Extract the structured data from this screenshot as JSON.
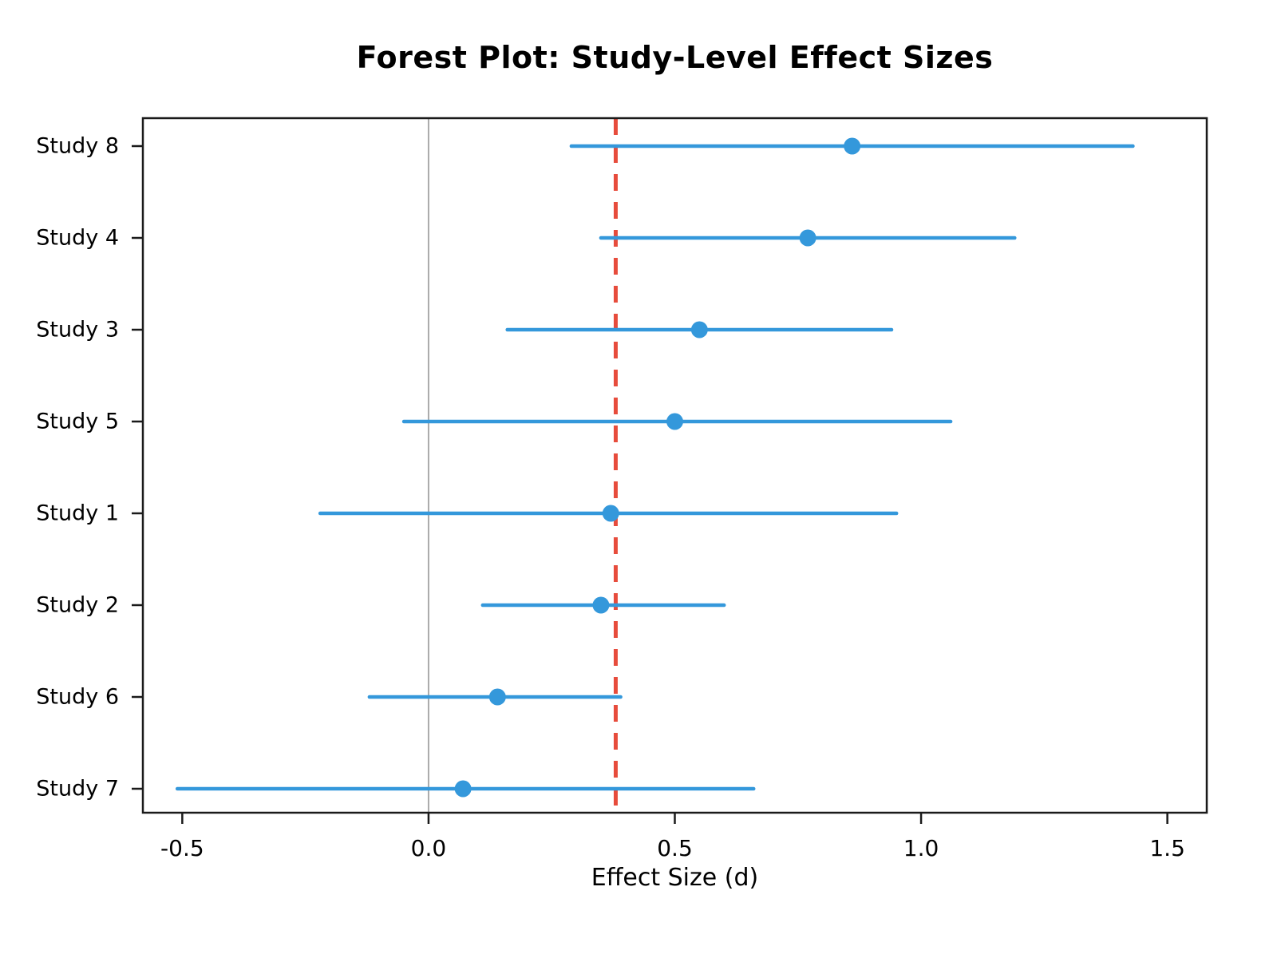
{
  "figure": {
    "background": "#ffffff"
  },
  "chart_data": {
    "type": "scatter",
    "variant": "forest-plot",
    "title": "Forest Plot: Study-Level Effect Sizes",
    "xlabel": "Effect Size (d)",
    "ylabel": "",
    "xlim": [
      -0.58,
      1.58
    ],
    "x_ticks": [
      {
        "value": -0.5,
        "label": "-0.5"
      },
      {
        "value": 0.0,
        "label": "0.0"
      },
      {
        "value": 0.5,
        "label": "0.5"
      },
      {
        "value": 1.0,
        "label": "1.0"
      },
      {
        "value": 1.5,
        "label": "1.5"
      }
    ],
    "grid": false,
    "legend": "none",
    "studies": [
      {
        "label": "Study 8",
        "effect": 0.86,
        "ci_low": 0.29,
        "ci_high": 1.43
      },
      {
        "label": "Study 4",
        "effect": 0.77,
        "ci_low": 0.35,
        "ci_high": 1.19
      },
      {
        "label": "Study 3",
        "effect": 0.55,
        "ci_low": 0.16,
        "ci_high": 0.94
      },
      {
        "label": "Study 5",
        "effect": 0.5,
        "ci_low": -0.05,
        "ci_high": 1.06
      },
      {
        "label": "Study 1",
        "effect": 0.37,
        "ci_low": -0.22,
        "ci_high": 0.95
      },
      {
        "label": "Study 2",
        "effect": 0.35,
        "ci_low": 0.11,
        "ci_high": 0.6
      },
      {
        "label": "Study 6",
        "effect": 0.14,
        "ci_low": -0.12,
        "ci_high": 0.39
      },
      {
        "label": "Study 7",
        "effect": 0.07,
        "ci_low": -0.51,
        "ci_high": 0.66
      }
    ],
    "reference_line": {
      "value": 0.38,
      "style": "dashed",
      "color": "#e74c3c"
    },
    "zero_line": {
      "value": 0.0,
      "style": "solid",
      "color": "#aaaaaa"
    },
    "colors": {
      "point": "#3498db",
      "ci": "#3498db",
      "frame": "#1a1a1a"
    }
  }
}
